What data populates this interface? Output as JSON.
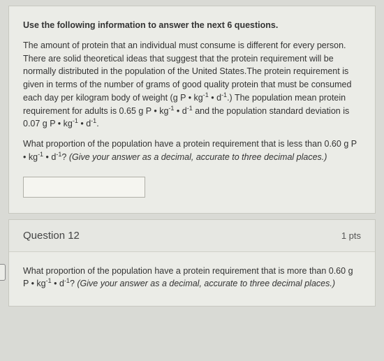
{
  "question11": {
    "header_bold": "Use the following information to answer the next 6 questions.",
    "body_p1": "The amount of protein that an individual must consume is different for every person. There are solid theoretical ideas that suggest that the protein requirement will be normally distributed in the population of the United States.The protein requirement is given in terms of the number of grams of good quality protein that must be consumed each day per kilogram body of weight (g P • kg⁻¹ • d⁻¹.) The population mean protein requirement for adults is 0.65 g P • kg⁻¹ • d⁻¹ and the population standard deviation is 0.07 g P • kg⁻¹ • d⁻¹.",
    "q_lead": "What proportion of the population have a protein requirement that is less than 0.60 g P • kg⁻¹ • d⁻¹? ",
    "q_italic": "(Give your answer as a decimal, accurate to three decimal places.)"
  },
  "question12": {
    "title": "Question 12",
    "pts": "1 pts",
    "q_lead": "What proportion of the population have a protein requirement that is more than 0.60 g P • kg⁻¹ • d⁻¹? ",
    "q_italic": "(Give your answer as a decimal, accurate to three decimal places.)"
  }
}
